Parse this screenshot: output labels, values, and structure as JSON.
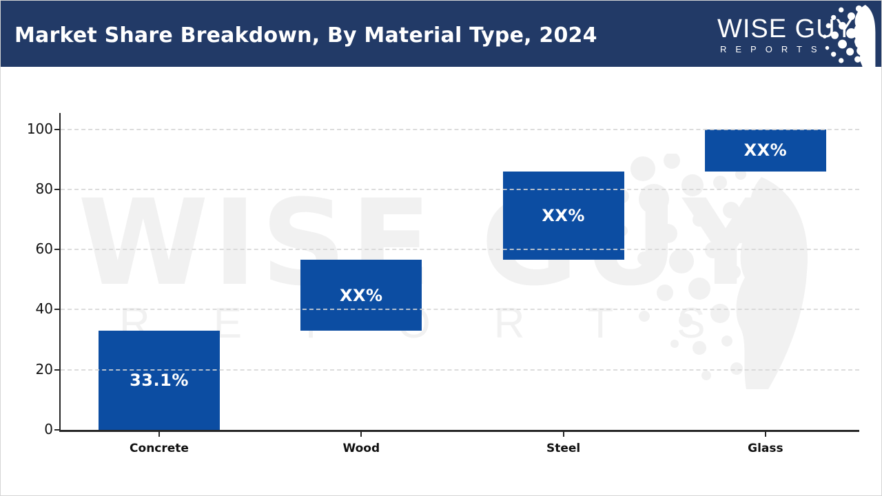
{
  "header": {
    "title": "Market Share Breakdown, By Material Type, 2024",
    "logo": {
      "wordmark": "WISE GUY",
      "subtext": "REPORTS"
    }
  },
  "watermark": {
    "wordmark": "WISE GUY",
    "subtext": "REPORTS"
  },
  "colors": {
    "header_bg": "#223A67",
    "bar": "#0C4DA2",
    "bar_label": "#FFFFFF",
    "grid": "#D6D6D6",
    "axis": "#262626",
    "watermark": "#F1F1F1"
  },
  "chart_data": {
    "type": "bar",
    "subtype": "waterfall",
    "title": "Market Share Breakdown, By Material Type, 2024",
    "categories": [
      "Concrete",
      "Wood",
      "Steel",
      "Glass"
    ],
    "series": [
      {
        "name": "Concrete",
        "start": 0,
        "end": 33.1,
        "label": "33.1%"
      },
      {
        "name": "Wood",
        "start": 33.1,
        "end": 56.5,
        "label": "XX%"
      },
      {
        "name": "Steel",
        "start": 56.5,
        "end": 86,
        "label": "XX%"
      },
      {
        "name": "Glass",
        "start": 86,
        "end": 100,
        "label": "XX%"
      }
    ],
    "xlabel": "",
    "ylabel": "",
    "ylim": [
      0,
      100
    ],
    "yticks": [
      0,
      20,
      40,
      60,
      80,
      100
    ],
    "grid": "horizontal-dashed",
    "legend": "none"
  }
}
